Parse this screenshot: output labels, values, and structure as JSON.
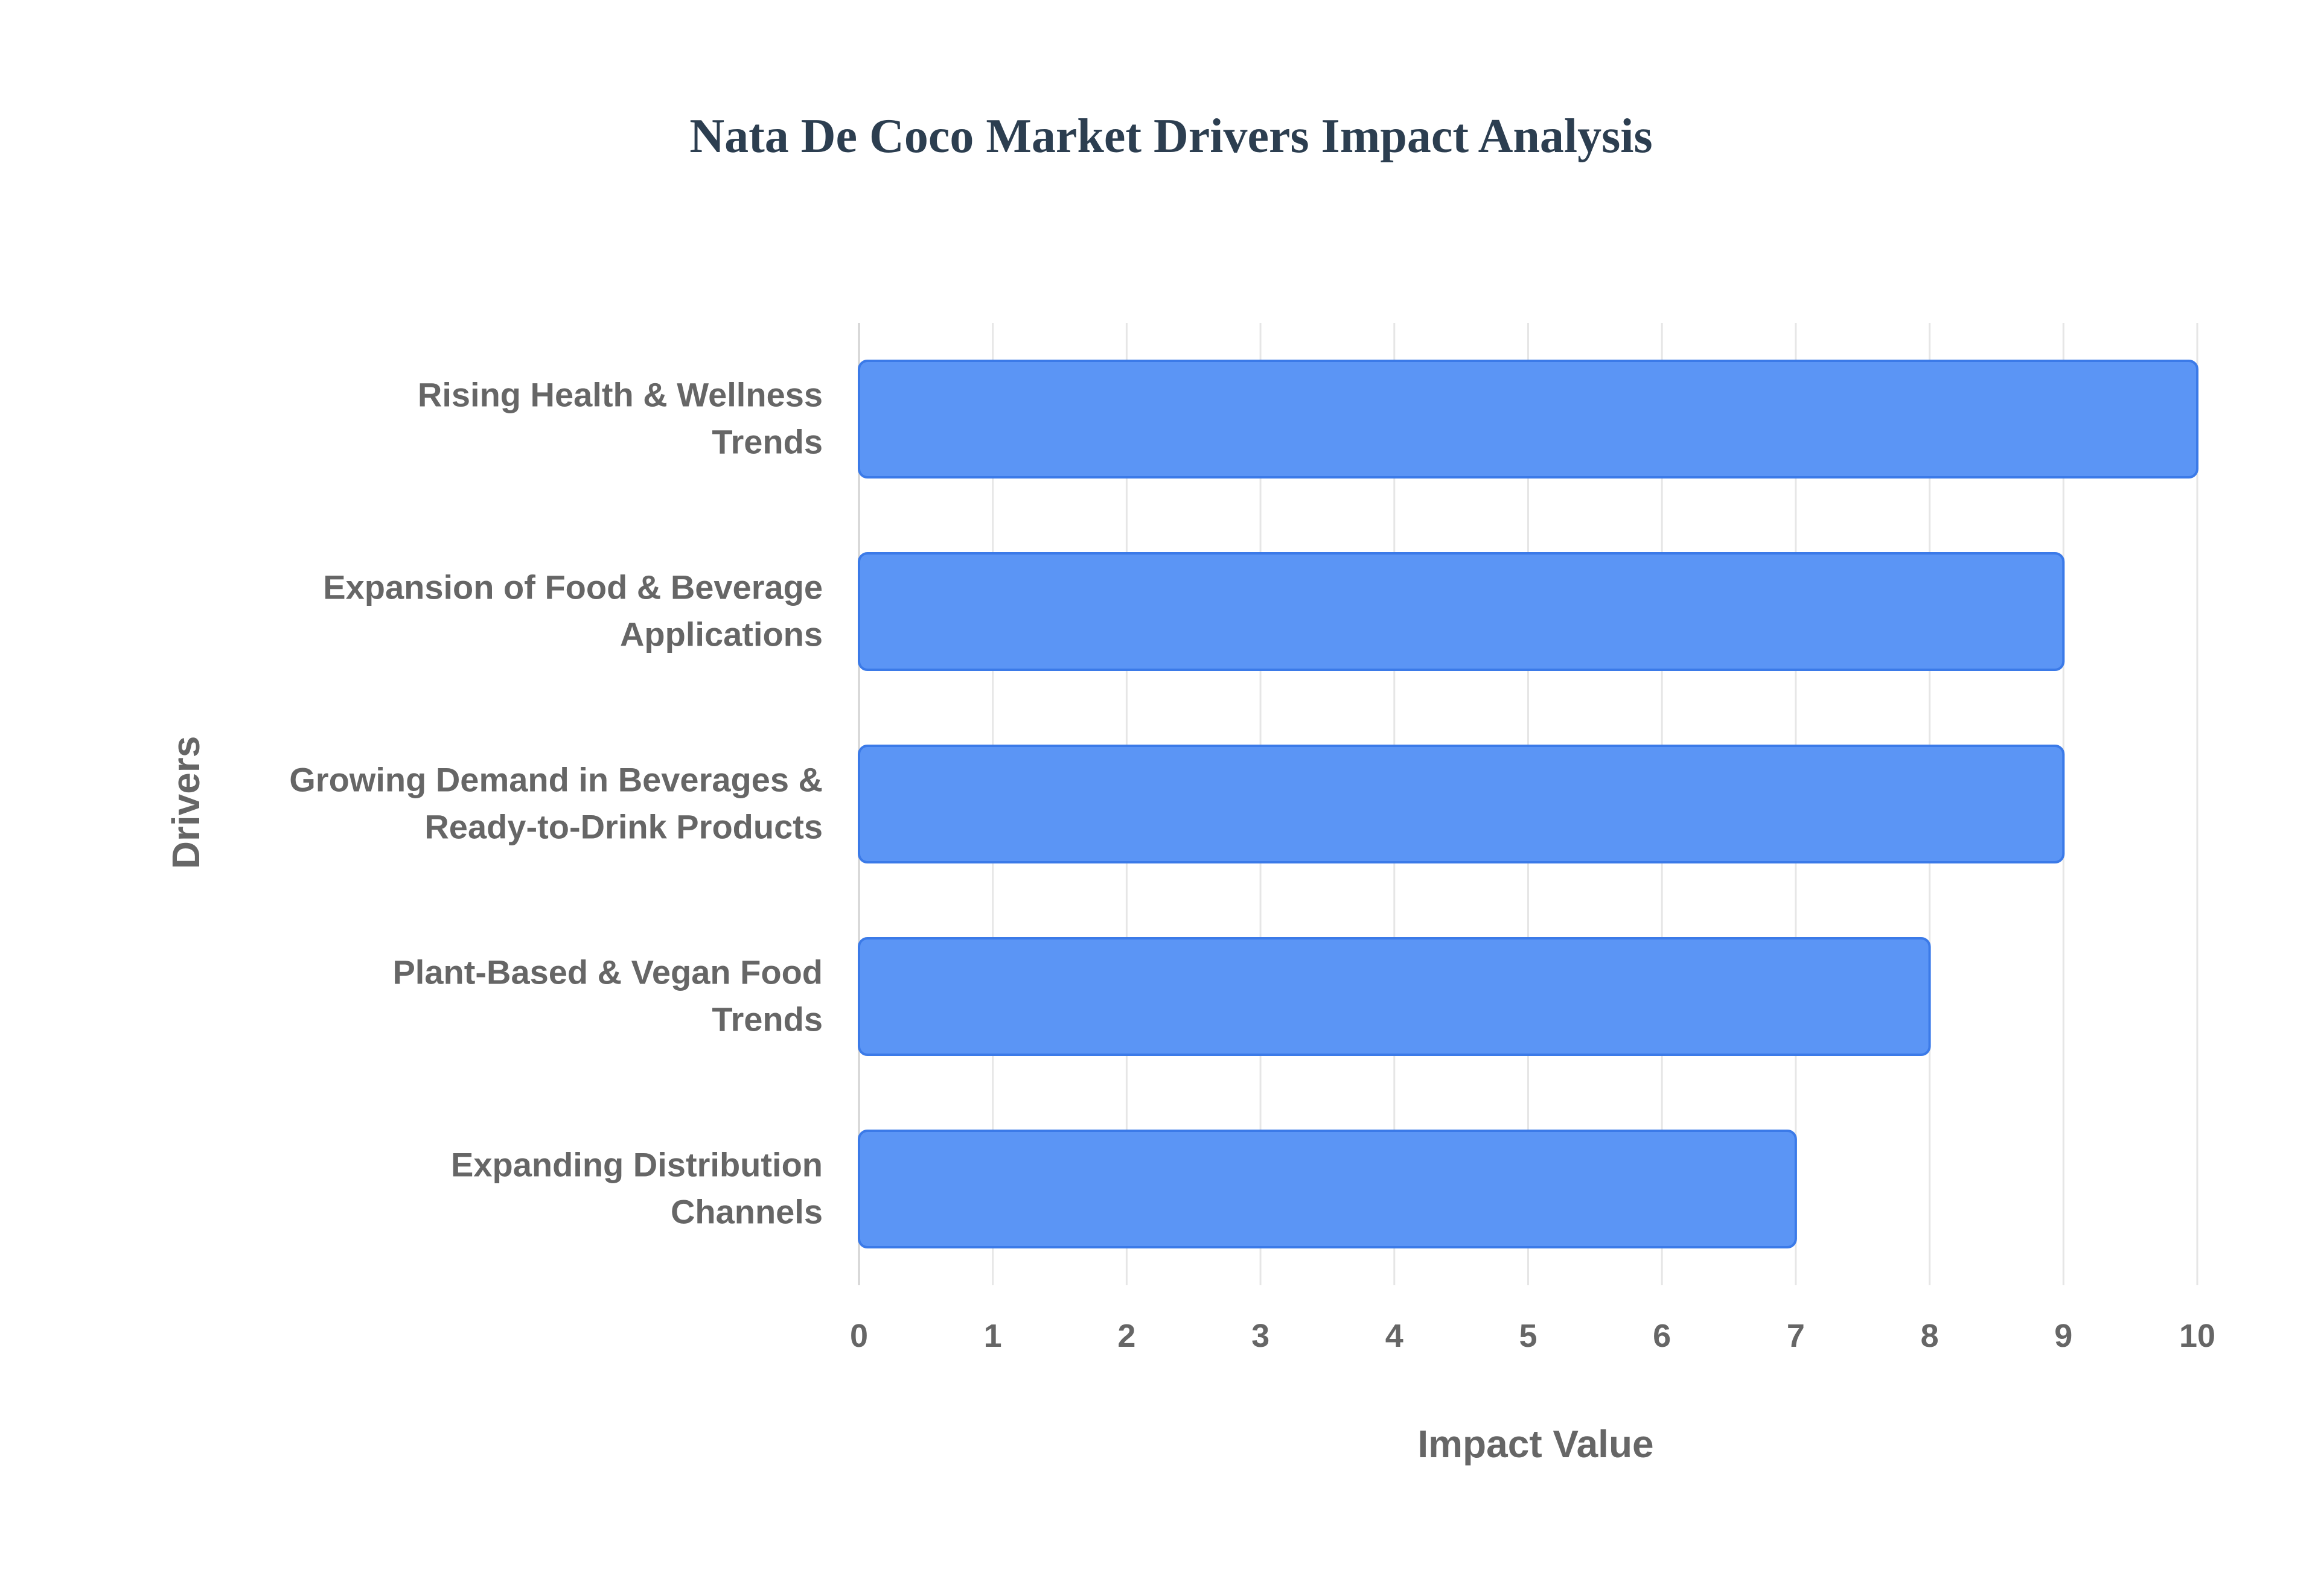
{
  "chart_data": {
    "type": "bar",
    "orientation": "horizontal",
    "title": "Nata De Coco Market Drivers Impact Analysis",
    "xlabel": "Impact Value",
    "ylabel": "Drivers",
    "categories": [
      "Rising Health & Wellness Trends",
      "Expansion of Food & Beverage Applications",
      "Growing Demand in Beverages & Ready-to-Drink Products",
      "Plant-Based & Vegan Food Trends",
      "Expanding Distribution Channels"
    ],
    "category_lines": [
      [
        "Rising Health & Wellness",
        "Trends"
      ],
      [
        "Expansion of Food & Beverage",
        "Applications"
      ],
      [
        "Growing Demand in Beverages &",
        "Ready-to-Drink Products"
      ],
      [
        "Plant-Based & Vegan Food",
        "Trends"
      ],
      [
        "Expanding Distribution",
        "Channels"
      ]
    ],
    "values": [
      10,
      9,
      9,
      8,
      7
    ],
    "xlim": [
      0,
      10
    ],
    "x_ticks": [
      "0",
      "1",
      "2",
      "3",
      "4",
      "5",
      "6",
      "7",
      "8",
      "9",
      "10"
    ],
    "grid": true,
    "legend": false,
    "colors": {
      "bar_fill": "#5b95f5",
      "bar_stroke": "#3b7ae8",
      "title": "#2c3e50",
      "label": "#666666",
      "grid": "#e6e6e6",
      "axis": "#d9d9d9"
    }
  }
}
